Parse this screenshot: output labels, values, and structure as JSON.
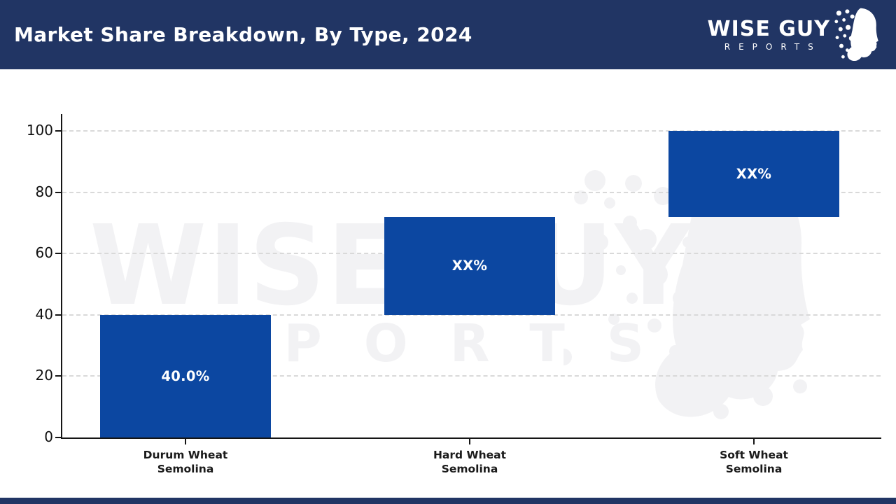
{
  "header": {
    "title": "Market Share Breakdown, By Type, 2024",
    "logo": {
      "line1": "WISE GUY",
      "line2": "REPORTS"
    }
  },
  "watermark": {
    "line1": "WISE GUY",
    "line2": "REPORTS"
  },
  "colors": {
    "header_bg": "#213564",
    "footer_bg": "#213564",
    "bar_fill": "#0c47a1",
    "bar_label": "#ffffff",
    "gridline": "#d9d9d9",
    "axis": "#151515",
    "watermark": "#f2f2f4"
  },
  "chart_data": {
    "type": "bar",
    "subtype": "stepped-breakdown",
    "title": "Market Share Breakdown, By Type, 2024",
    "categories": [
      "Durum Wheat Semolina",
      "Hard Wheat Semolina",
      "Soft Wheat Semolina"
    ],
    "category_lines": [
      [
        "Durum Wheat",
        "Semolina"
      ],
      [
        "Hard Wheat",
        "Semolina"
      ],
      [
        "Soft Wheat",
        "Semolina"
      ]
    ],
    "segments": [
      {
        "category": "Durum Wheat Semolina",
        "start": 0,
        "end": 40,
        "label": "40.0%"
      },
      {
        "category": "Hard Wheat Semolina",
        "start": 40,
        "end": 72,
        "label": "XX%"
      },
      {
        "category": "Soft Wheat Semolina",
        "start": 72,
        "end": 100,
        "label": "XX%"
      }
    ],
    "ylim": [
      0,
      100
    ],
    "yticks": [
      0,
      20,
      40,
      60,
      80,
      100
    ],
    "xlabel": "",
    "ylabel": "",
    "grid": "horizontal-dashed",
    "legend": "none"
  }
}
